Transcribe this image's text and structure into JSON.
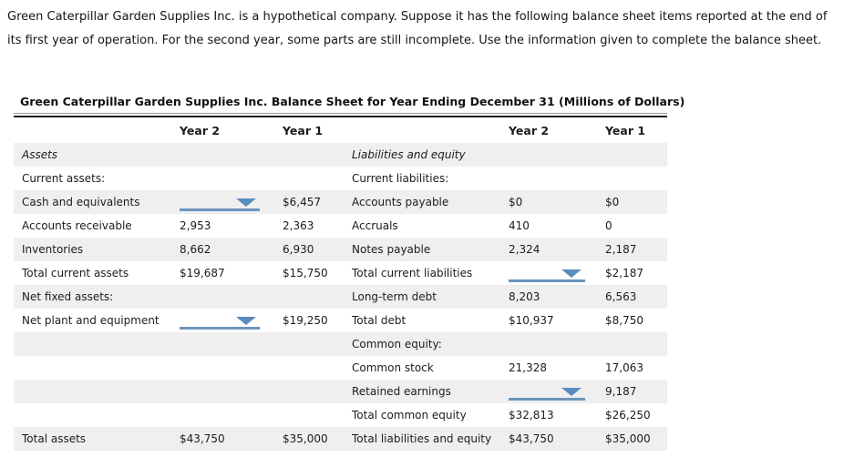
{
  "intro": "Green Caterpillar Garden Supplies Inc. is a hypothetical company. Suppose it has the following balance sheet items reported at the end of its first year of operation. For the second year, some parts are still incomplete. Use the information given to complete the balance sheet.",
  "balance_sheet": {
    "title": "Green Caterpillar Garden Supplies Inc. Balance Sheet for Year Ending December 31 (Millions of Dollars)",
    "col_headers": {
      "left_year2": "Year 2",
      "left_year1": "Year 1",
      "right_year2": "Year 2",
      "right_year1": "Year 1"
    },
    "rows": [
      {
        "left": {
          "label": "Assets",
          "year2": "",
          "year1": ""
        },
        "right": {
          "label": "Liabilities and equity",
          "year2": "",
          "year1": ""
        }
      },
      {
        "left": {
          "label": "Current assets:",
          "year2": "",
          "year1": ""
        },
        "right": {
          "label": "Current liabilities:",
          "year2": "",
          "year1": ""
        }
      },
      {
        "left": {
          "label": "Cash and equivalents",
          "year2_dropdown": true,
          "year2": "",
          "year1": "$6,457"
        },
        "right": {
          "label": "Accounts payable",
          "year2": "$0",
          "year1": "$0"
        }
      },
      {
        "left": {
          "label": "Accounts receivable",
          "year2": "2,953",
          "year1": "2,363"
        },
        "right": {
          "label": "Accruals",
          "year2": "410",
          "year1": "0"
        }
      },
      {
        "left": {
          "label": "Inventories",
          "year2": "8,662",
          "year1": "6,930"
        },
        "right": {
          "label": "Notes payable",
          "year2": "2,324",
          "year1": "2,187"
        }
      },
      {
        "left": {
          "label": "Total current assets",
          "year2": "$19,687",
          "year1": "$15,750"
        },
        "right": {
          "label": "Total current liabilities",
          "year2_dropdown": true,
          "year2": "",
          "year1": "$2,187"
        }
      },
      {
        "left": {
          "label": "Net fixed assets:",
          "year2": "",
          "year1": ""
        },
        "right": {
          "label": "Long-term debt",
          "year2": "8,203",
          "year1": "6,563"
        }
      },
      {
        "left": {
          "label": "Net plant and equipment",
          "year2_dropdown": true,
          "year2": "",
          "year1": "$19,250"
        },
        "right": {
          "label": "Total debt",
          "year2": "$10,937",
          "year1": "$8,750"
        }
      },
      {
        "left": {
          "label": "",
          "year2": "",
          "year1": ""
        },
        "right": {
          "label": "Common equity:",
          "year2": "",
          "year1": ""
        }
      },
      {
        "left": {
          "label": "",
          "year2": "",
          "year1": ""
        },
        "right": {
          "label": "Common stock",
          "year2": "21,328",
          "year1": "17,063"
        }
      },
      {
        "left": {
          "label": "",
          "year2": "",
          "year1": ""
        },
        "right": {
          "label": "Retained earnings",
          "year2_dropdown": true,
          "year2": "",
          "year1": "9,187"
        }
      },
      {
        "left": {
          "label": "",
          "year2": "",
          "year1": ""
        },
        "right": {
          "label": "Total common equity",
          "year2": "$32,813",
          "year1": "$26,250"
        }
      },
      {
        "left": {
          "label": "Total assets",
          "year2": "$43,750",
          "year1": "$35,000"
        },
        "right": {
          "label": "Total liabilities and equity",
          "year2": "$43,750",
          "year1": "$35,000"
        }
      }
    ]
  },
  "icons": {
    "dropdown_arrow": "dropdown-arrow-icon"
  },
  "colors": {
    "accent_blue_arrow": "#5b8cbe",
    "accent_blue_underline": "#6b95bb",
    "row_stripe": "#efefef",
    "rule_dark": "#1a1a1a",
    "rule_light": "#9b9b9b"
  }
}
